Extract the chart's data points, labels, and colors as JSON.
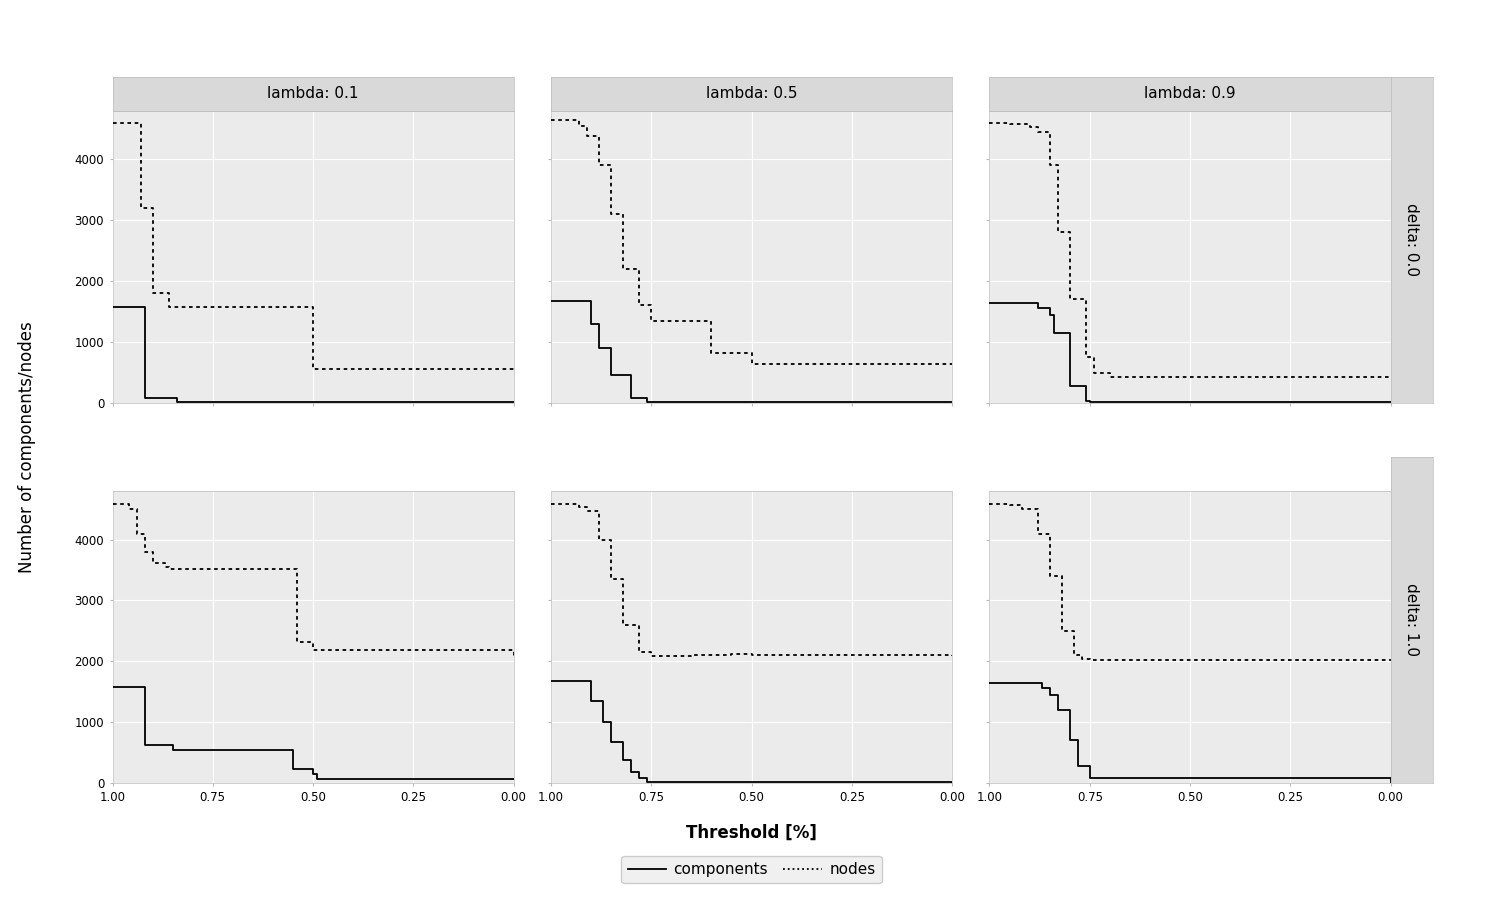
{
  "col_labels": [
    "lambda: 0.1",
    "lambda: 0.5",
    "lambda: 0.9"
  ],
  "row_labels": [
    "delta: 0.0",
    "delta: 1.0"
  ],
  "xlabel": "Threshold [%]",
  "ylabel": "Number of components/nodes",
  "legend_labels": [
    "components",
    "nodes"
  ],
  "figure_bg": "#FFFFFF",
  "panel_bg": "#EBEBEB",
  "strip_bg": "#D9D9D9",
  "grid_color": "#FFFFFF",
  "line_color": "#000000",
  "yticks": [
    0,
    1000,
    2000,
    3000,
    4000
  ],
  "ylim": [
    0,
    4800
  ],
  "xticks": [
    1.0,
    0.75,
    0.5,
    0.25,
    0.0
  ],
  "xticklabels": [
    "1.00",
    "0.75",
    "0.50",
    "0.25",
    "0.00"
  ],
  "panels": {
    "0_0": {
      "comp_x": [
        1.0,
        0.93,
        0.92,
        0.85,
        0.84,
        0.5,
        0.49,
        0.0
      ],
      "comp_y": [
        1580,
        1580,
        80,
        80,
        5,
        5,
        5,
        5
      ],
      "nodes_x": [
        1.0,
        0.97,
        0.93,
        0.9,
        0.86,
        0.85,
        0.53,
        0.51,
        0.5,
        0.0
      ],
      "nodes_y": [
        4600,
        4600,
        3200,
        1800,
        1570,
        1570,
        1570,
        1570,
        560,
        560
      ]
    },
    "0_1": {
      "comp_x": [
        1.0,
        0.93,
        0.9,
        0.88,
        0.85,
        0.8,
        0.76,
        0.75,
        0.0
      ],
      "comp_y": [
        1680,
        1680,
        1300,
        900,
        450,
        80,
        10,
        5,
        5
      ],
      "nodes_x": [
        1.0,
        0.95,
        0.93,
        0.91,
        0.88,
        0.85,
        0.82,
        0.78,
        0.75,
        0.6,
        0.5,
        0.0
      ],
      "nodes_y": [
        4640,
        4640,
        4550,
        4380,
        3900,
        3100,
        2200,
        1600,
        1350,
        820,
        630,
        630
      ]
    },
    "0_2": {
      "comp_x": [
        1.0,
        0.9,
        0.88,
        0.85,
        0.84,
        0.8,
        0.76,
        0.75,
        0.0
      ],
      "comp_y": [
        1640,
        1640,
        1550,
        1450,
        1150,
        280,
        30,
        15,
        10
      ],
      "nodes_x": [
        1.0,
        0.97,
        0.95,
        0.9,
        0.88,
        0.85,
        0.83,
        0.8,
        0.76,
        0.74,
        0.7,
        0.0
      ],
      "nodes_y": [
        4600,
        4600,
        4580,
        4540,
        4450,
        3900,
        2800,
        1700,
        750,
        490,
        430,
        420
      ]
    },
    "1_0": {
      "comp_x": [
        1.0,
        0.93,
        0.92,
        0.86,
        0.85,
        0.6,
        0.55,
        0.5,
        0.49,
        0.0
      ],
      "comp_y": [
        1570,
        1570,
        620,
        620,
        535,
        535,
        230,
        140,
        60,
        60
      ],
      "nodes_x": [
        1.0,
        0.96,
        0.94,
        0.92,
        0.9,
        0.87,
        0.86,
        0.55,
        0.54,
        0.5,
        0.0
      ],
      "nodes_y": [
        4580,
        4500,
        4100,
        3800,
        3620,
        3550,
        3520,
        3520,
        2320,
        2180,
        2080
      ]
    },
    "1_1": {
      "comp_x": [
        1.0,
        0.93,
        0.9,
        0.87,
        0.85,
        0.82,
        0.8,
        0.78,
        0.76,
        0.75,
        0.0
      ],
      "comp_y": [
        1680,
        1680,
        1350,
        1000,
        680,
        380,
        180,
        80,
        20,
        10,
        5
      ],
      "nodes_x": [
        1.0,
        0.95,
        0.93,
        0.91,
        0.88,
        0.85,
        0.82,
        0.78,
        0.75,
        0.65,
        0.55,
        0.5,
        0.0
      ],
      "nodes_y": [
        4580,
        4580,
        4540,
        4470,
        4000,
        3350,
        2600,
        2150,
        2080,
        2100,
        2120,
        2100,
        2080
      ]
    },
    "1_2": {
      "comp_x": [
        1.0,
        0.88,
        0.87,
        0.85,
        0.83,
        0.8,
        0.78,
        0.75,
        0.0
      ],
      "comp_y": [
        1650,
        1650,
        1560,
        1450,
        1200,
        700,
        280,
        80,
        20
      ],
      "nodes_x": [
        1.0,
        0.97,
        0.95,
        0.92,
        0.88,
        0.85,
        0.82,
        0.79,
        0.77,
        0.75,
        0.0
      ],
      "nodes_y": [
        4590,
        4590,
        4570,
        4510,
        4100,
        3400,
        2500,
        2100,
        2030,
        2020,
        2020
      ]
    }
  }
}
